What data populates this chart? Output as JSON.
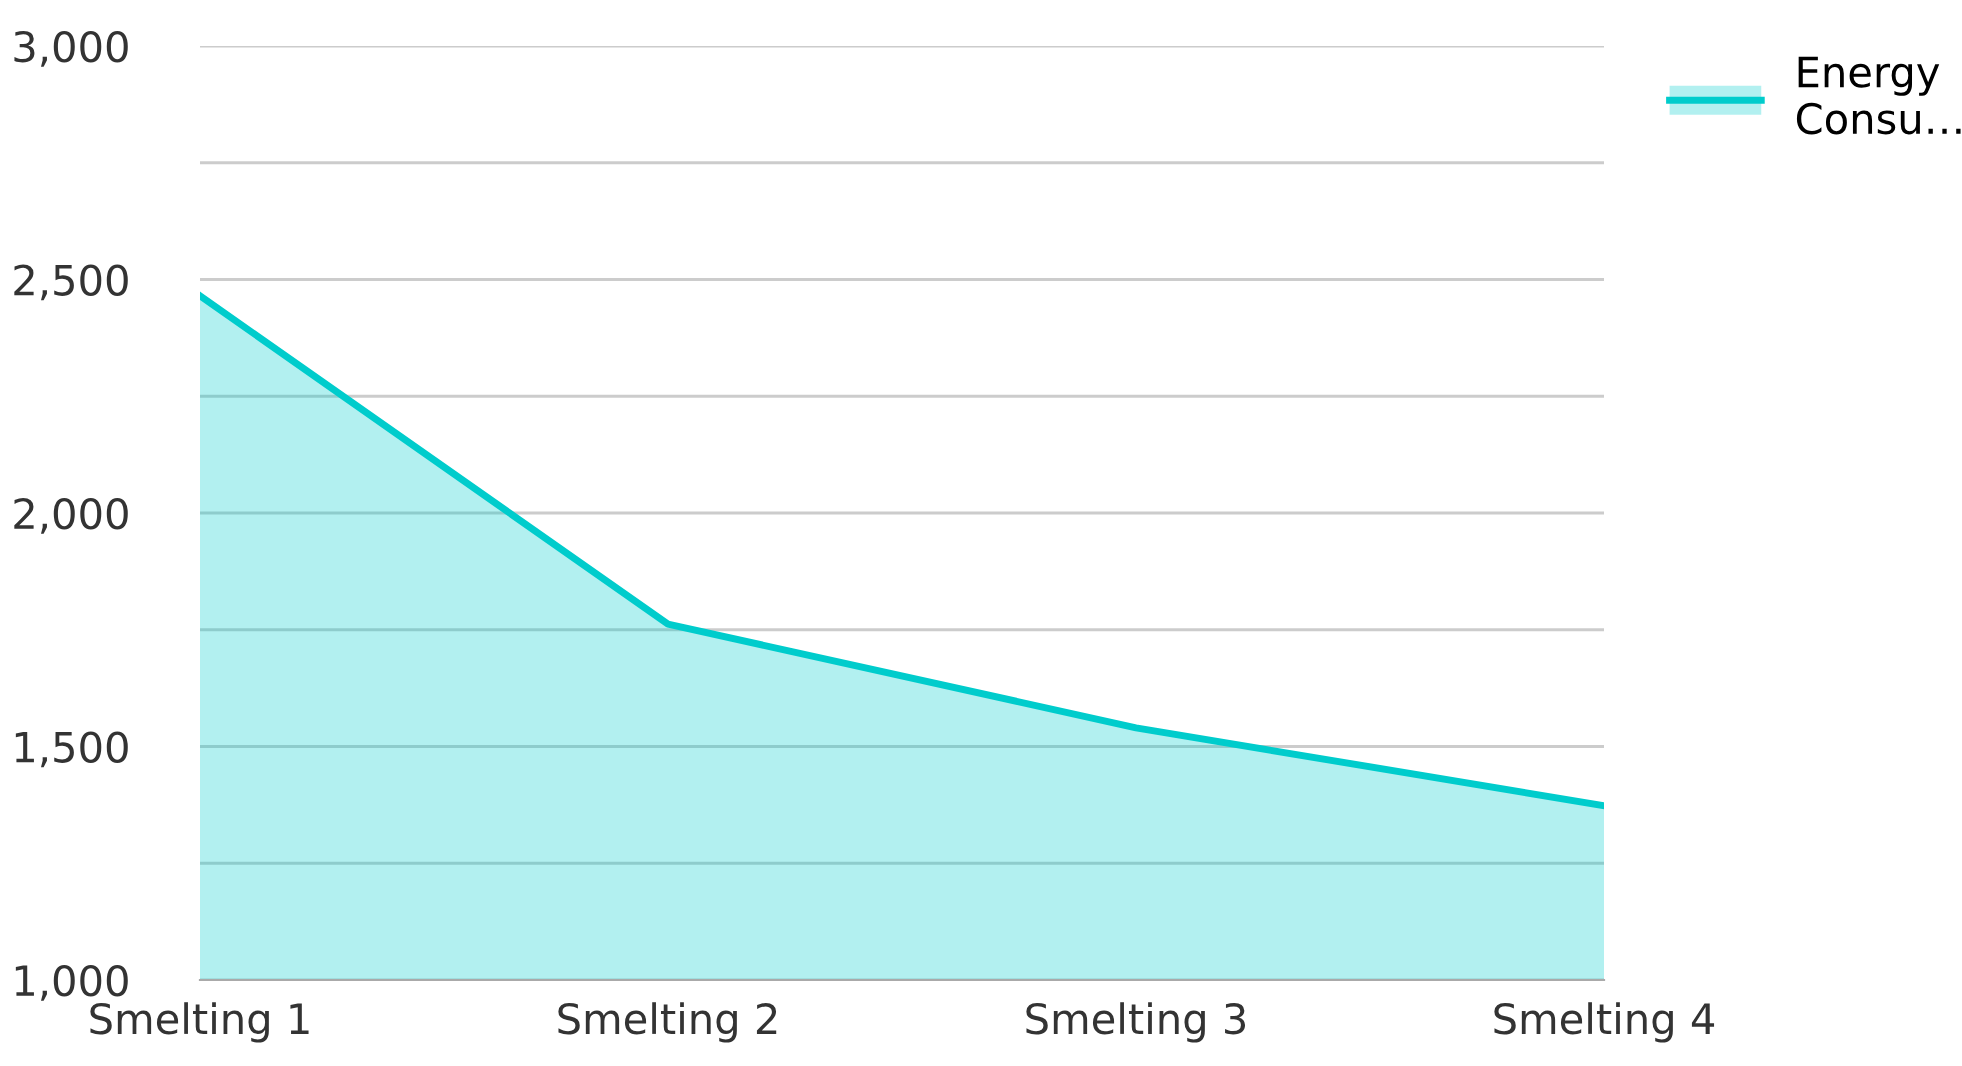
{
  "chart_data": {
    "type": "area",
    "categories": [
      "Smelting 1",
      "Smelting 2",
      "Smelting 3",
      "Smelting 4"
    ],
    "series": [
      {
        "name": "Energy\nConsu…",
        "color": "#00cccc",
        "values": [
          2465,
          1762,
          1540,
          1373
        ]
      }
    ],
    "ylim": [
      1000,
      3000
    ],
    "yticks": [
      {
        "value": 1000,
        "label": "1,000"
      },
      {
        "value": 1250,
        "label": null
      },
      {
        "value": 1500,
        "label": "1,500"
      },
      {
        "value": 1750,
        "label": null
      },
      {
        "value": 2000,
        "label": "2,000"
      },
      {
        "value": 2250,
        "label": null
      },
      {
        "value": 2500,
        "label": "2,500"
      },
      {
        "value": 2750,
        "label": null
      },
      {
        "value": 3000,
        "label": "3,000"
      }
    ],
    "grid": "y",
    "legend": "top right"
  }
}
